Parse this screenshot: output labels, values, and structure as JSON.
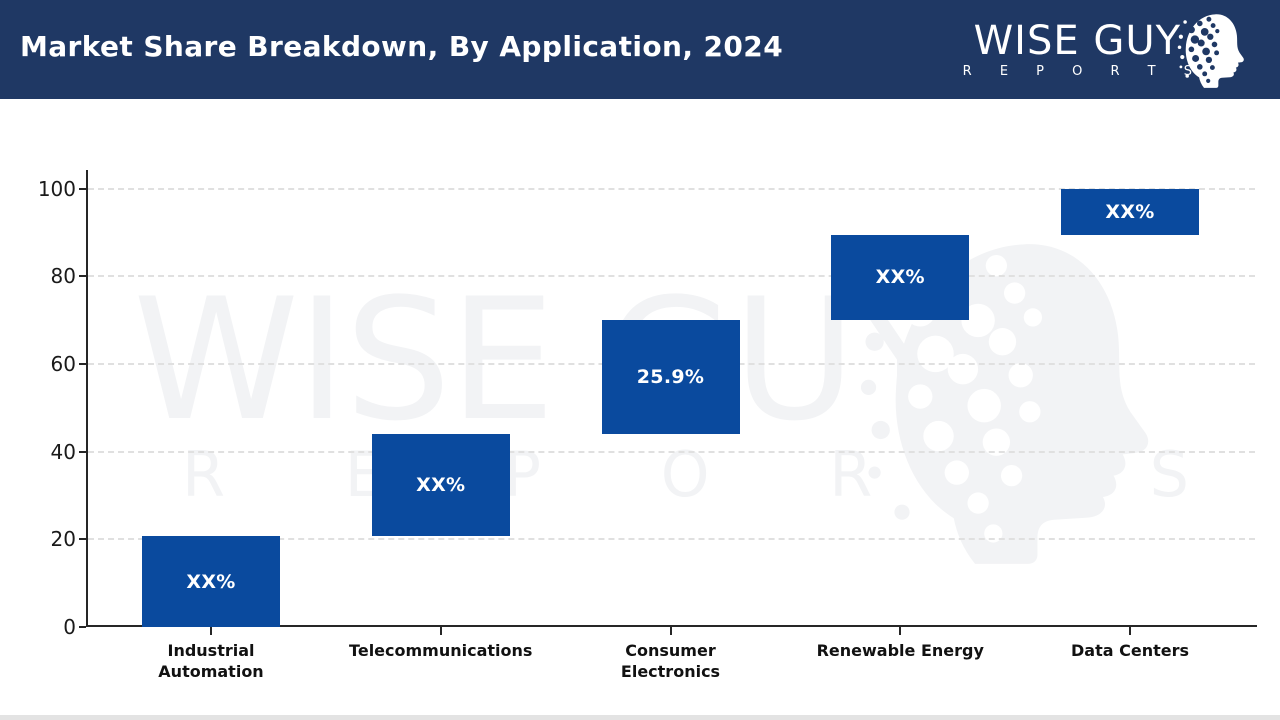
{
  "header": {
    "title": "Market Share Breakdown, By Application, 2024"
  },
  "logo": {
    "line1": "WISE GUY",
    "line2": "R E P O R T S"
  },
  "watermark": {
    "line1": "WISE GUY",
    "line2": "R E P O R T S"
  },
  "colors": {
    "header_bg": "#1f3864",
    "bar_blue": "#0a4a9e",
    "grid": "#e0e0e0",
    "axis": "#262626",
    "wm": "#f2f3f5",
    "footer_strip": "#e3e3e3",
    "text_dark": "#1a1a1a"
  },
  "chart_data": {
    "type": "bar",
    "subtype": "waterfall-floating-bars",
    "title": "Market Share Breakdown, By Application, 2024",
    "categories": [
      "Industrial\nAutomation",
      "Telecommunications",
      "Consumer\nElectronics",
      "Renewable Energy",
      "Data Centers"
    ],
    "segments": [
      {
        "category": "Industrial Automation",
        "start": 0,
        "end": 20.7,
        "label": "XX%"
      },
      {
        "category": "Telecommunications",
        "start": 20.7,
        "end": 44.1,
        "label": "XX%"
      },
      {
        "category": "Consumer Electronics",
        "start": 44.1,
        "end": 70.0,
        "label": "25.9%"
      },
      {
        "category": "Renewable Energy",
        "start": 70.0,
        "end": 89.5,
        "label": "XX%"
      },
      {
        "category": "Data Centers",
        "start": 89.5,
        "end": 100.0,
        "label": "XX%"
      }
    ],
    "xlabel": "",
    "ylabel": "",
    "ylim": [
      0,
      100
    ],
    "yticks": [
      0,
      20,
      40,
      60,
      80,
      100
    ],
    "grid": "horizontal-dashed",
    "legend": "none",
    "bar_color": "#0a4a9e",
    "bar_label_color": "#ffffff"
  }
}
